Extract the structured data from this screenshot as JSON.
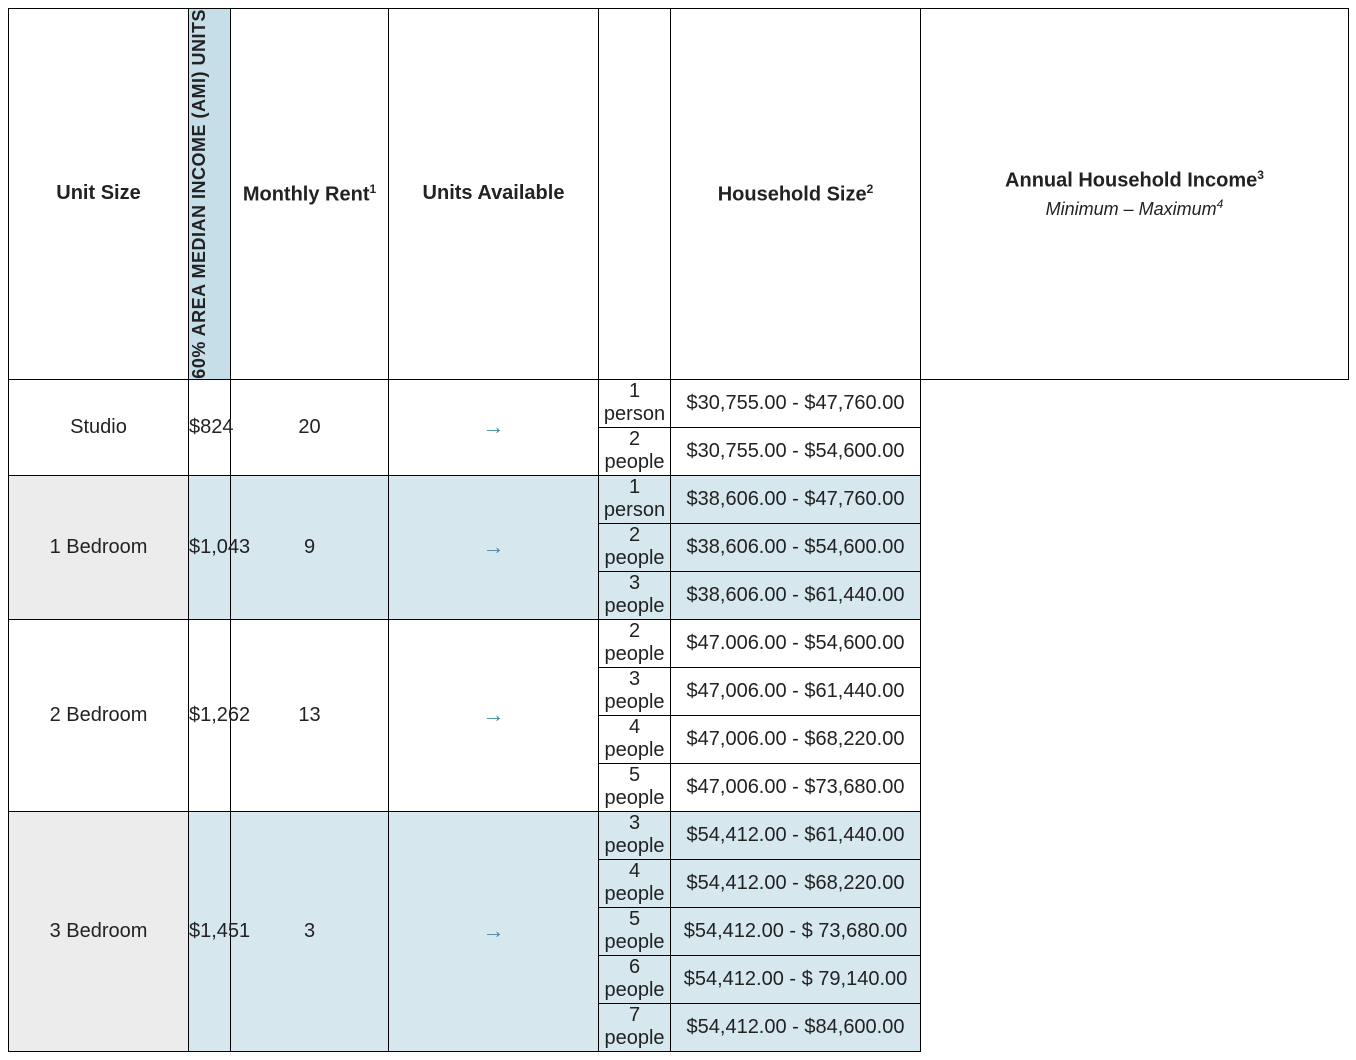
{
  "headers": {
    "unit_size": "Unit Size",
    "monthly_rent": "Monthly Rent",
    "monthly_rent_sup": "1",
    "units_available": "Units Available",
    "household_size": "Household Size",
    "household_size_sup": "2",
    "annual_income": "Annual Household Income",
    "annual_income_sup": "3",
    "annual_income_sub": "Minimum – Maximum",
    "annual_income_sub_sup": "4"
  },
  "ami_label": "60% AREA MEDIAN INCOME (AMI) UNITS",
  "colors": {
    "ami_bg": "#c6dee8",
    "alt_unit_bg": "#ececec",
    "alt_row_bg": "#d6e7ee",
    "border": "#000000",
    "arrow": "#3b8aa8",
    "text": "#222222"
  },
  "units": [
    {
      "name": "Studio",
      "rent": "$824",
      "available": "20",
      "shaded": false,
      "households": [
        {
          "size": "1 person",
          "income": "$30,755.00 - $47,760.00"
        },
        {
          "size": "2 people",
          "income": "$30,755.00 - $54,600.00"
        }
      ]
    },
    {
      "name": "1 Bedroom",
      "rent": "$1,043",
      "available": "9",
      "shaded": true,
      "households": [
        {
          "size": "1 person",
          "income": "$38,606.00 - $47,760.00"
        },
        {
          "size": "2 people",
          "income": "$38,606.00 - $54,600.00"
        },
        {
          "size": "3 people",
          "income": "$38,606.00 - $61,440.00"
        }
      ]
    },
    {
      "name": "2 Bedroom",
      "rent": "$1,262",
      "available": "13",
      "shaded": false,
      "households": [
        {
          "size": "2 people",
          "income": "$47.006.00 - $54,600.00"
        },
        {
          "size": "3 people",
          "income": "$47,006.00 - $61,440.00"
        },
        {
          "size": "4 people",
          "income": "$47,006.00 - $68,220.00"
        },
        {
          "size": "5 people",
          "income": "$47,006.00 - $73,680.00"
        }
      ]
    },
    {
      "name": "3 Bedroom",
      "rent": "$1,451",
      "available": "3",
      "shaded": true,
      "households": [
        {
          "size": "3 people",
          "income": "$54,412.00 - $61,440.00"
        },
        {
          "size": "4 people",
          "income": "$54,412.00 - $68,220.00"
        },
        {
          "size": "5 people",
          "income": "$54,412.00 - $ 73,680.00"
        },
        {
          "size": "6 people",
          "income": "$54,412.00 - $ 79,140.00"
        },
        {
          "size": "7 people",
          "income": "$54,412.00 - $84,600.00"
        }
      ]
    }
  ]
}
